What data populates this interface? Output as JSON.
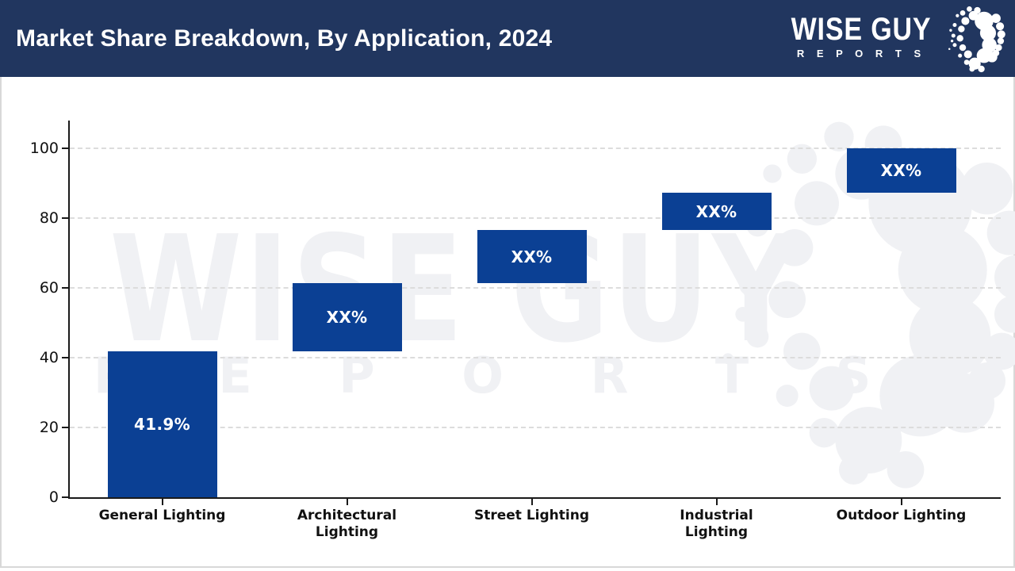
{
  "header": {
    "title": "Market Share Breakdown, By Application, 2024",
    "logo": {
      "line1": "WISE GUY",
      "line2": "R E P O R T S"
    }
  },
  "watermark": {
    "line1": "WISE GUY",
    "line2": "R E P O R T S"
  },
  "colors": {
    "header_bg": "#21365f",
    "bar": "#0b4094",
    "grid": "#dcdcdc",
    "axis": "#1a1a1a",
    "tick_text": "#111111",
    "bar_label_text": "#ffffff",
    "watermark": "#f0f1f4",
    "frame_border": "#d8d8d8"
  },
  "chart_data": {
    "type": "bar",
    "subtype": "waterfall",
    "title": "Market Share Breakdown, By Application, 2024",
    "categories": [
      "General Lighting",
      "Architectural\nLighting",
      "Street Lighting",
      "Industrial\nLighting",
      "Outdoor Lighting"
    ],
    "segments": [
      {
        "category": "General Lighting",
        "start": 0,
        "end": 41.9,
        "label": "41.9%"
      },
      {
        "category": "Architectural Lighting",
        "start": 41.9,
        "end": 61.3,
        "label": "XX%"
      },
      {
        "category": "Street Lighting",
        "start": 61.3,
        "end": 76.6,
        "label": "XX%"
      },
      {
        "category": "Industrial Lighting",
        "start": 76.6,
        "end": 87.2,
        "label": "XX%"
      },
      {
        "category": "Outdoor Lighting",
        "start": 87.2,
        "end": 100,
        "label": "XX%"
      }
    ],
    "yticks": [
      0,
      20,
      40,
      60,
      80,
      100
    ],
    "ylim": [
      0,
      108
    ],
    "xlabel": "",
    "ylabel": "",
    "grid": "horizontal-dashed",
    "legend": "none"
  }
}
